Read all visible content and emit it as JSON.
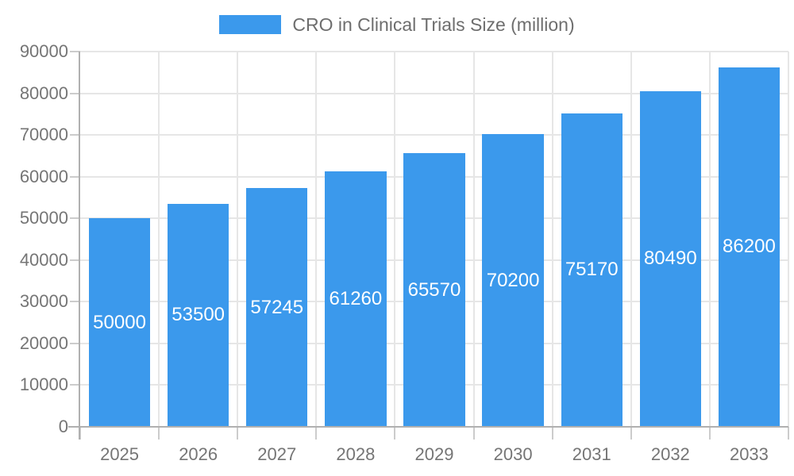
{
  "legend": {
    "label": "CRO in Clinical Trials Size (million)",
    "swatch_color": "#3B99EC"
  },
  "chart_data": {
    "type": "bar",
    "title": "CRO in Clinical Trials Size (million)",
    "categories": [
      "2025",
      "2026",
      "2027",
      "2028",
      "2029",
      "2030",
      "2031",
      "2032",
      "2033"
    ],
    "series": [
      {
        "name": "CRO in Clinical Trials Size (million)",
        "values": [
          50000,
          53500,
          57245,
          61260,
          65570,
          70200,
          75170,
          80490,
          86200
        ]
      }
    ],
    "value_labels": [
      "50000",
      "53500",
      "57245",
      "61260",
      "65570",
      "70200",
      "75170",
      "80490",
      "86200"
    ],
    "xlabel": "",
    "ylabel": "",
    "ylim": [
      0,
      90000
    ],
    "ytick_step": 10000,
    "ytick_labels": [
      "0",
      "10000",
      "20000",
      "30000",
      "40000",
      "50000",
      "60000",
      "70000",
      "80000",
      "90000"
    ],
    "grid": true,
    "legend_position": "top",
    "bar_color": "#3B99EC",
    "value_label_color": "#FFFFFF",
    "axis_label_color": "#757575",
    "gridline_color": "#E6E6E6",
    "axis_line_color": "#B0B0B0"
  }
}
